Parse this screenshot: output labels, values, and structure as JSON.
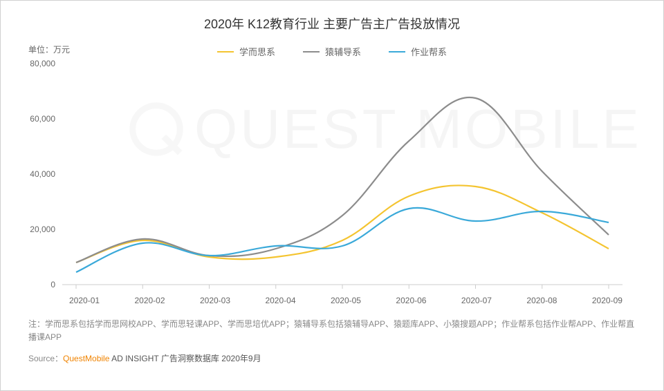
{
  "title": "2020年 K12教育行业 主要广告主广告投放情况",
  "unit_label": "单位：万元",
  "legend": {
    "s1": "学而思系",
    "s2": "猿辅导系",
    "s3": "作业帮系"
  },
  "chart": {
    "type": "line",
    "background_color": "#ffffff",
    "axis_color": "#cccccc",
    "text_color": "#666666",
    "title_fontsize": 18,
    "label_fontsize": 12,
    "line_width": 2.2,
    "ylim": [
      0,
      80000
    ],
    "ytick_step": 20000,
    "y_ticks": [
      "0",
      "20,000",
      "40,000",
      "60,000",
      "80,000"
    ],
    "x_categories": [
      "2020-01",
      "2020-02",
      "2020-03",
      "2020-04",
      "2020-05",
      "2020-06",
      "2020-07",
      "2020-08",
      "2020-09"
    ],
    "series": [
      {
        "key": "s1",
        "color": "#f4c430",
        "values": [
          8000,
          16000,
          10000,
          10000,
          16000,
          32000,
          35500,
          26000,
          13000
        ]
      },
      {
        "key": "s2",
        "color": "#8c8c8c",
        "values": [
          8000,
          16500,
          10500,
          13000,
          25000,
          52000,
          67500,
          41000,
          18000
        ]
      },
      {
        "key": "s3",
        "color": "#3aa9d9",
        "values": [
          4500,
          15000,
          10500,
          14000,
          14000,
          27500,
          23000,
          26500,
          22500
        ]
      }
    ]
  },
  "note": "注：学而思系包括学而思网校APP、学而思轻课APP、学而思培优APP；猿辅导系包括猿辅导APP、猿题库APP、小猿搜题APP；作业帮系包括作业帮APP、作业帮直播课APP",
  "source_prefix": "Source：",
  "source_brand1": "QuestMobile",
  "source_brand2": " AD INSIGHT 广告洞察数据库 2020年9月",
  "watermark": "QUEST MOBILE"
}
